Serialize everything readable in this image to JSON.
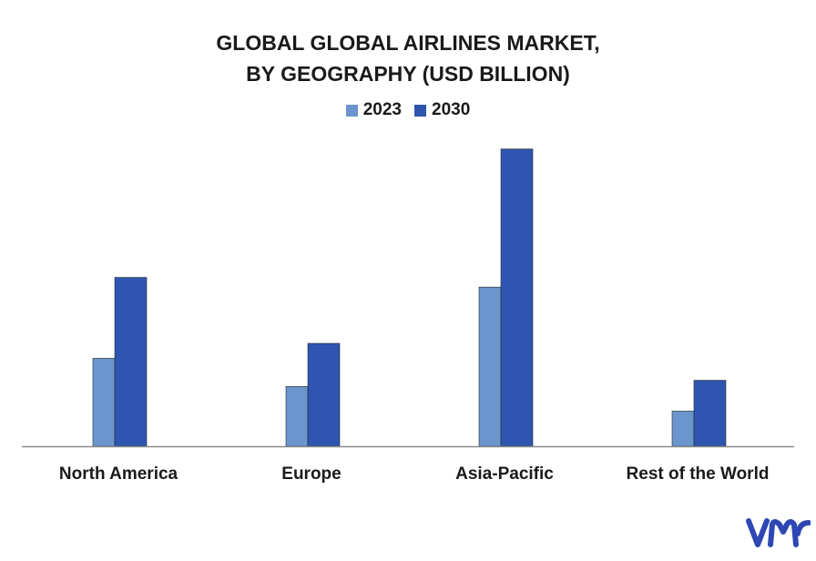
{
  "title_line1": "GLOBAL GLOBAL AIRLINES MARKET,",
  "title_line2": "BY GEOGRAPHY (USD BILLION)",
  "colors": {
    "s2023": "#6a96cd",
    "s2030": "#2e55b0",
    "axis": "#8c8c8c",
    "logo": "#2f47b4"
  },
  "logo": {
    "name": "vmr-logo"
  },
  "chart_data": {
    "type": "bar",
    "title": "GLOBAL GLOBAL AIRLINES MARKET, BY GEOGRAPHY (USD BILLION)",
    "categories": [
      "North America",
      "Europe",
      "Asia-Pacific",
      "Rest of the World"
    ],
    "series": [
      {
        "name": "2023",
        "values": [
          100,
          68,
          181,
          40
        ]
      },
      {
        "name": "2030",
        "values": [
          192,
          117,
          338,
          75
        ]
      }
    ],
    "ylim": [
      0,
      350
    ],
    "legend_position": "top-center",
    "grid": false,
    "y_axis_visible": false
  }
}
